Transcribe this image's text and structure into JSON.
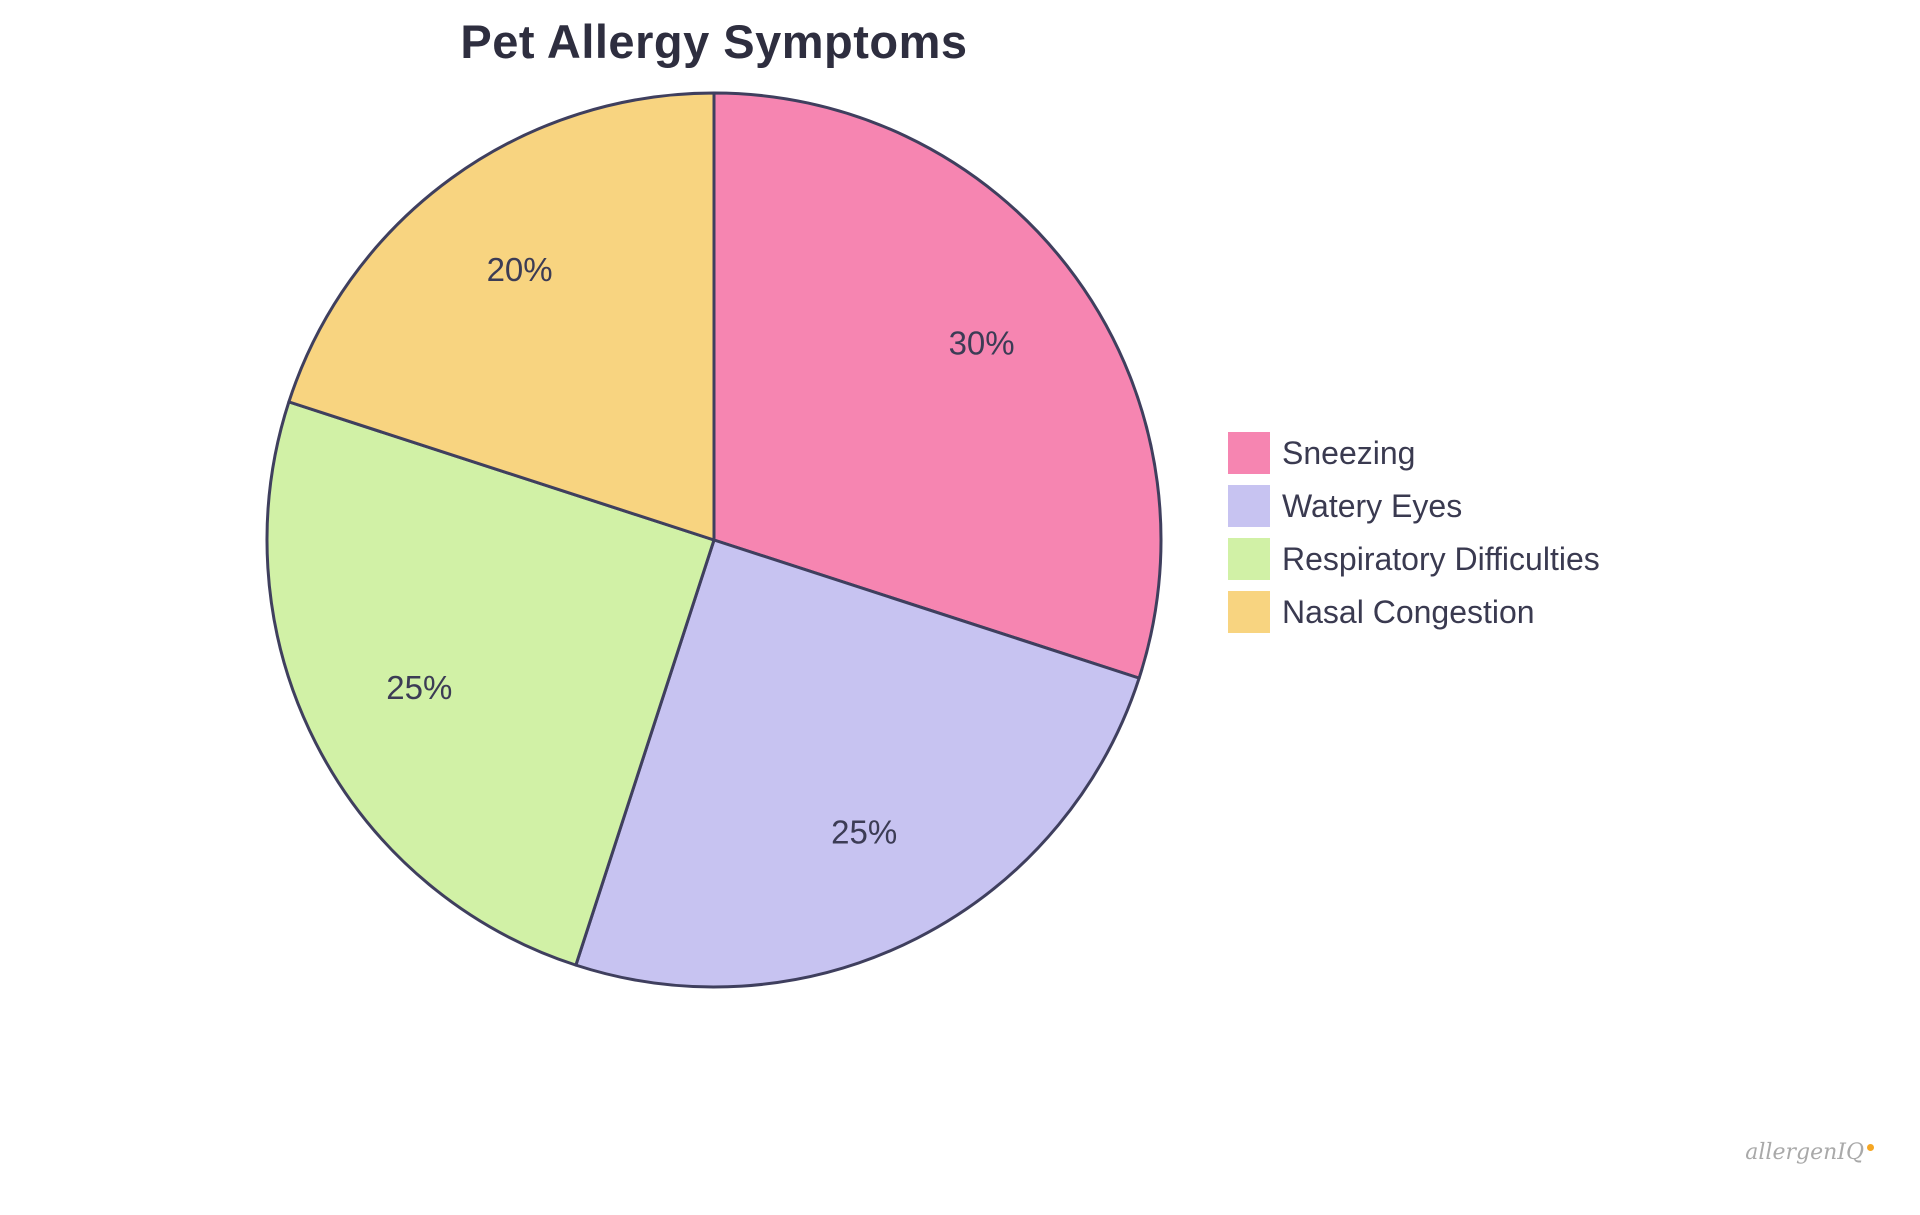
{
  "chart_data": {
    "type": "pie",
    "title": "Pet Allergy Symptoms",
    "categories": [
      "Sneezing",
      "Watery Eyes",
      "Respiratory Difficulties",
      "Nasal Congestion"
    ],
    "values": [
      30,
      25,
      25,
      20
    ],
    "slice_labels": [
      "30%",
      "25%",
      "25%",
      "20%"
    ],
    "colors": [
      "#F685B1",
      "#C7C3F1",
      "#D1F1A6",
      "#F8D480"
    ],
    "stroke_color": "#3F3F5E",
    "label_color": "#3C3C55",
    "start_angle_deg": -90,
    "direction": "clockwise",
    "legend_position": "right",
    "legend_entries": [
      "Sneezing",
      "Watery Eyes",
      "Respiratory Difficulties",
      "Nasal Congestion"
    ]
  },
  "watermark": {
    "text": "allergenIQ"
  }
}
